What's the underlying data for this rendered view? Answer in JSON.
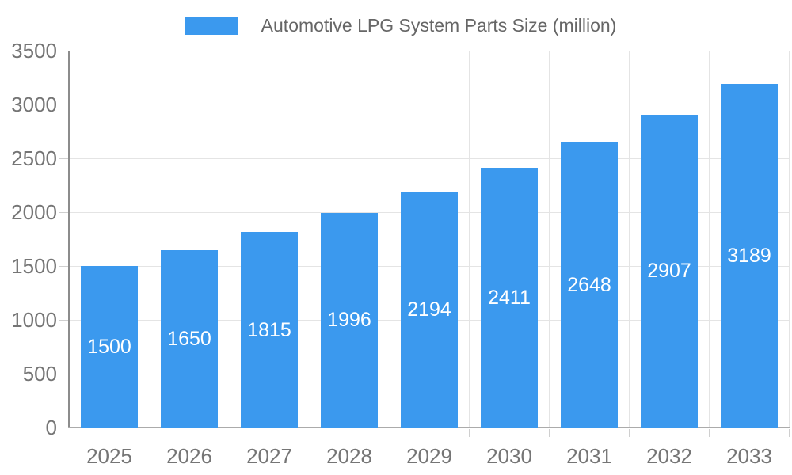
{
  "legend": {
    "position": "top-center"
  },
  "chart_data": {
    "type": "bar",
    "title": "Automotive LPG System Parts Size (million)",
    "categories": [
      "2025",
      "2026",
      "2027",
      "2028",
      "2029",
      "2030",
      "2031",
      "2032",
      "2033"
    ],
    "values": [
      1500,
      1650,
      1815,
      1996,
      2194,
      2411,
      2648,
      2907,
      3189
    ],
    "xlabel": "",
    "ylabel": "",
    "ylim": [
      0,
      3500
    ],
    "yticks": [
      0,
      500,
      1000,
      1500,
      2000,
      2500,
      3000,
      3500
    ],
    "grid": true,
    "legend_position": "top-center",
    "colors": {
      "bar": "#3B99EE",
      "bar_label": "#FFFFFF",
      "axis_label": "#757575",
      "title_text": "#666666",
      "gridline": "#E4E4E4",
      "tick": "#CFCFCF",
      "y_axis_line": "#8C8C8C",
      "x_axis_line": "#ABABAB"
    }
  }
}
